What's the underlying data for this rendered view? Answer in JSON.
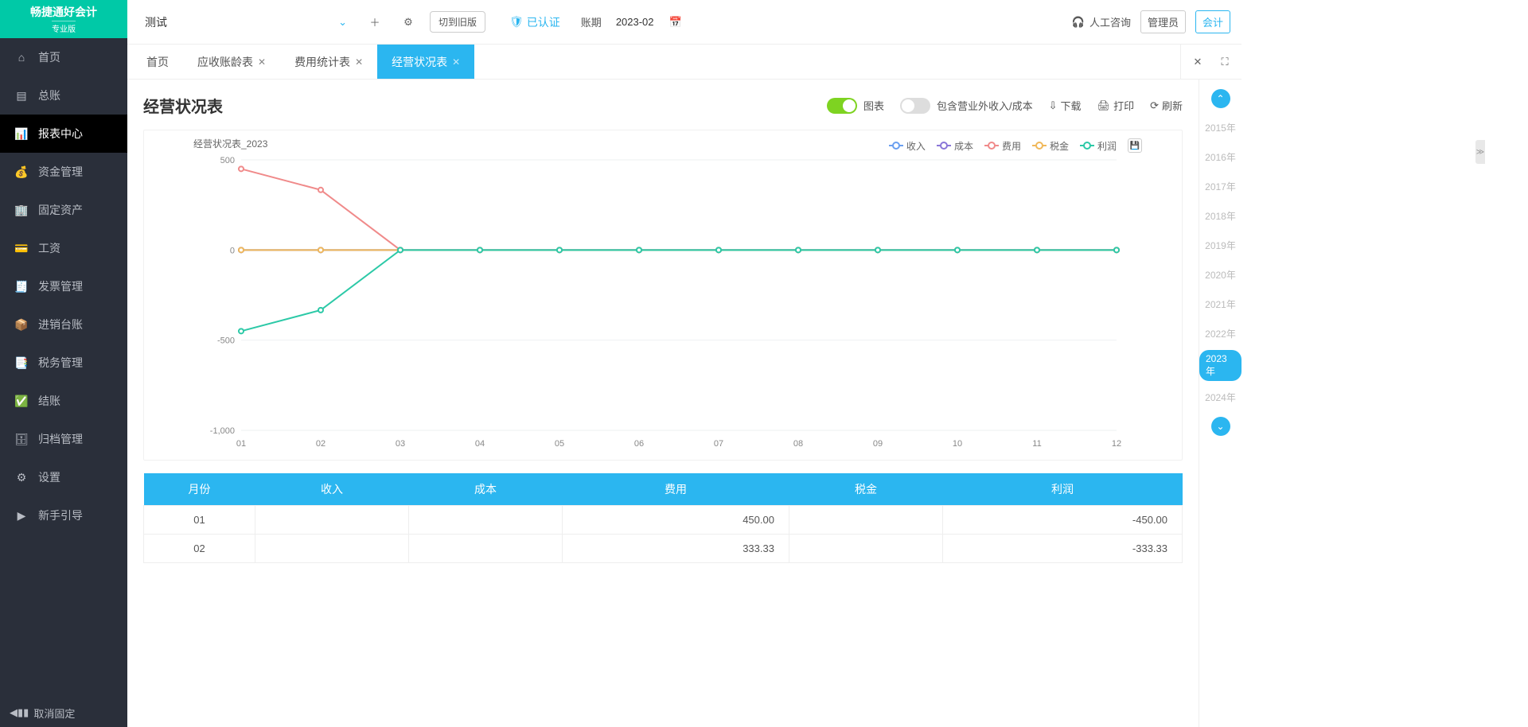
{
  "brand": {
    "name": "畅捷通好会计",
    "edition": "专业版"
  },
  "sidebar": {
    "items": [
      {
        "label": "首页",
        "icon": "home"
      },
      {
        "label": "总账",
        "icon": "ledger"
      },
      {
        "label": "报表中心",
        "icon": "report",
        "active": true
      },
      {
        "label": "资金管理",
        "icon": "fund"
      },
      {
        "label": "固定资产",
        "icon": "asset"
      },
      {
        "label": "工资",
        "icon": "salary"
      },
      {
        "label": "发票管理",
        "icon": "invoice"
      },
      {
        "label": "进销台账",
        "icon": "stock"
      },
      {
        "label": "税务管理",
        "icon": "tax"
      },
      {
        "label": "结账",
        "icon": "close"
      },
      {
        "label": "归档管理",
        "icon": "archive"
      },
      {
        "label": "设置",
        "icon": "settings"
      },
      {
        "label": "新手引导",
        "icon": "guide"
      }
    ],
    "footer": "取消固定"
  },
  "topbar": {
    "org": "测试",
    "switch_old": "切到旧版",
    "certified": "已认证",
    "period_label": "账期",
    "period_value": "2023-02",
    "service": "人工咨询",
    "role_admin": "管理员",
    "role_account": "会计"
  },
  "tabs": [
    {
      "label": "首页",
      "closable": false
    },
    {
      "label": "应收账龄表",
      "closable": true
    },
    {
      "label": "费用统计表",
      "closable": true
    },
    {
      "label": "经营状况表",
      "closable": true,
      "active": true
    }
  ],
  "report": {
    "title": "经营状况表",
    "toggle_chart": "图表",
    "toggle_include": "包含营业外收入/成本",
    "download": "下载",
    "print": "打印",
    "refresh": "刷新"
  },
  "chart": {
    "title": "经营状况表_2023",
    "type": "line",
    "categories": [
      "01",
      "02",
      "03",
      "04",
      "05",
      "06",
      "07",
      "08",
      "09",
      "10",
      "11",
      "12"
    ],
    "series": [
      {
        "name": "收入",
        "color": "#6a9ff0",
        "data": [
          0,
          0,
          0,
          0,
          0,
          0,
          0,
          0,
          0,
          0,
          0,
          0
        ]
      },
      {
        "name": "成本",
        "color": "#8a76d8",
        "data": [
          0,
          0,
          0,
          0,
          0,
          0,
          0,
          0,
          0,
          0,
          0,
          0
        ]
      },
      {
        "name": "费用",
        "color": "#f08a8a",
        "data": [
          450,
          333.33,
          0,
          0,
          0,
          0,
          0,
          0,
          0,
          0,
          0,
          0
        ]
      },
      {
        "name": "税金",
        "color": "#f0b85a",
        "data": [
          0,
          0,
          0,
          0,
          0,
          0,
          0,
          0,
          0,
          0,
          0,
          0
        ]
      },
      {
        "name": "利润",
        "color": "#2cc9a7",
        "data": [
          -450,
          -333.33,
          0,
          0,
          0,
          0,
          0,
          0,
          0,
          0,
          0,
          0
        ]
      }
    ],
    "ylim": [
      -1000,
      500
    ],
    "ytick_step": 500,
    "grid_color": "#eef0f2",
    "axis_color": "#ccc",
    "background": "#ffffff",
    "marker_radius": 3,
    "line_width": 2,
    "label_fontsize": 11
  },
  "table": {
    "columns": [
      "月份",
      "收入",
      "成本",
      "费用",
      "税金",
      "利润"
    ],
    "rows": [
      [
        "01",
        "",
        "",
        "450.00",
        "",
        "-450.00"
      ],
      [
        "02",
        "",
        "",
        "333.33",
        "",
        "-333.33"
      ]
    ],
    "header_bg": "#2bb6f0",
    "header_color": "#ffffff"
  },
  "years": {
    "list": [
      "2015年",
      "2016年",
      "2017年",
      "2018年",
      "2019年",
      "2020年",
      "2021年",
      "2022年",
      "2023年",
      "2024年"
    ],
    "active": "2023年"
  }
}
